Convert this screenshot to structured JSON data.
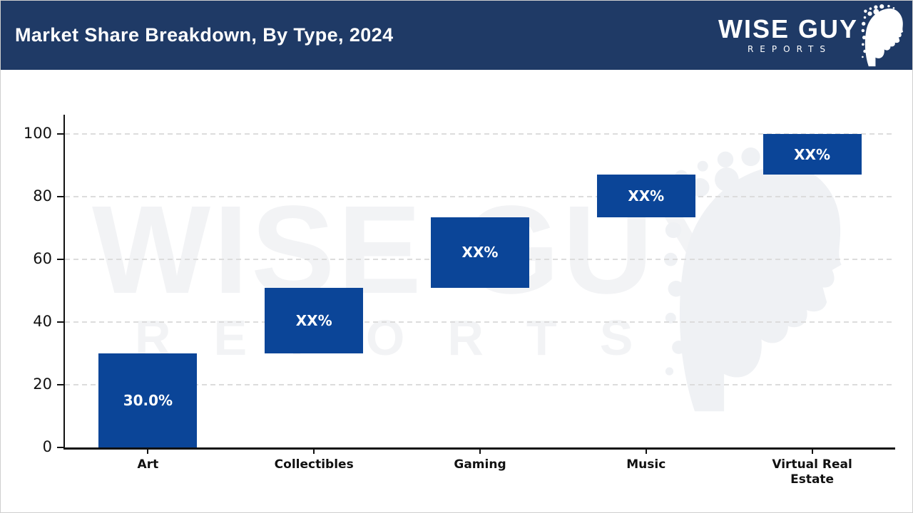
{
  "page": {
    "background": "#ffffff",
    "border_color": "#cfcfcf"
  },
  "header": {
    "title": "Market Share Breakdown, By Type, 2024",
    "bg_color": "#1f3a66",
    "logo": {
      "line1": "WISE GUY",
      "line2": "REPORTS"
    }
  },
  "watermark": {
    "line1": "WISE GUY",
    "line2": "REPORTS"
  },
  "chart_data": {
    "type": "bar",
    "subtype": "waterfall",
    "title": "Market Share Breakdown, By Type, 2024",
    "unit": "%",
    "categories": [
      "Art",
      "Collectibles",
      "Gaming",
      "Music",
      "Virtual Real Estate"
    ],
    "segments": [
      {
        "category": "Art",
        "start": 0,
        "end": 30,
        "value": 30,
        "label": "30.0%"
      },
      {
        "category": "Collectibles",
        "start": 30,
        "end": 51,
        "value": 21,
        "label": "XX%"
      },
      {
        "category": "Gaming",
        "start": 51,
        "end": 73.5,
        "value": 22.5,
        "label": "XX%"
      },
      {
        "category": "Music",
        "start": 73.5,
        "end": 87,
        "value": 13.5,
        "label": "XX%"
      },
      {
        "category": "Virtual Real Estate",
        "start": 87,
        "end": 100,
        "value": 13,
        "label": "XX%"
      }
    ],
    "yticks": [
      0,
      20,
      40,
      60,
      80,
      100
    ],
    "ylim": [
      0,
      106
    ],
    "grid": {
      "horizontal": true,
      "style": "dashed",
      "color": "#dcdcdc"
    },
    "bar_color": "#0b4598",
    "bar_label_color": "#ffffff",
    "legend": null
  }
}
